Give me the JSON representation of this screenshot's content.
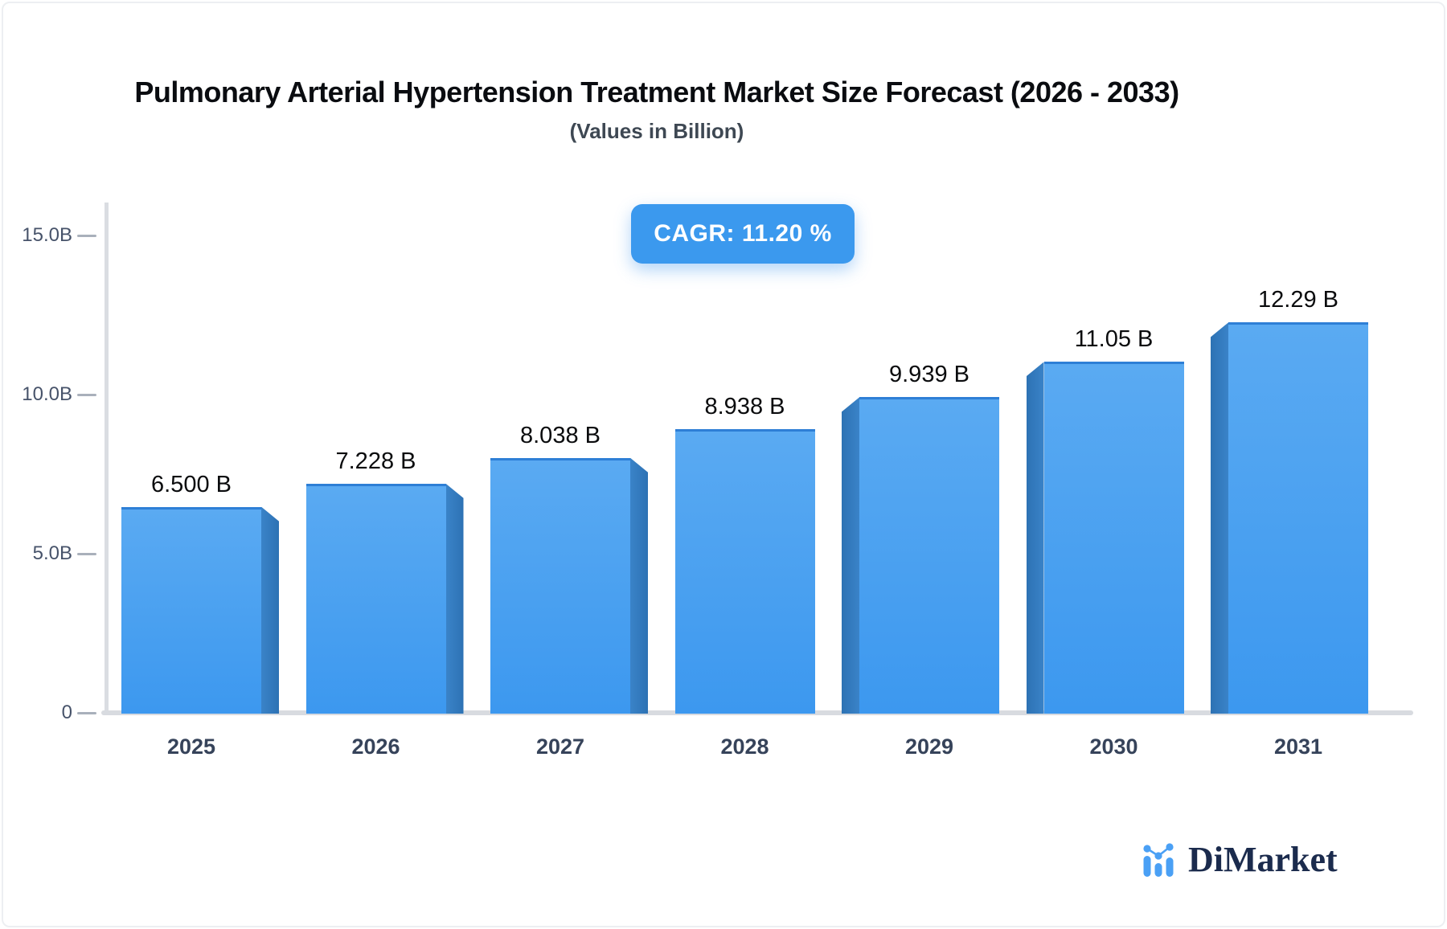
{
  "header": {
    "title": "Pulmonary Arterial Hypertension Treatment Market Size Forecast (2026 - 2033)",
    "subtitle": "(Values in Billion)"
  },
  "badge": {
    "label": "CAGR: 11.20 %"
  },
  "chart_data": {
    "type": "bar",
    "title": "Pulmonary Arterial Hypertension Treatment Market Size Forecast (2026 - 2033)",
    "subtitle": "(Values in Billion)",
    "categories": [
      "2025",
      "2026",
      "2027",
      "2028",
      "2029",
      "2030",
      "2031"
    ],
    "values": [
      6.5,
      7.228,
      8.038,
      8.938,
      9.939,
      11.05,
      12.29
    ],
    "value_labels": [
      "6.500 B",
      "7.228 B",
      "8.038 B",
      "8.938 B",
      "9.939 B",
      "11.05 B",
      "12.29 B"
    ],
    "cagr_label": "CAGR: 11.20 %",
    "xlabel": "",
    "ylabel": "",
    "ylim": [
      0,
      15
    ],
    "yticks": [
      {
        "value": 15,
        "label": "15.0B"
      },
      {
        "value": 10,
        "label": "10.0B"
      },
      {
        "value": 5,
        "label": "5.0B"
      },
      {
        "value": 0,
        "label": "0"
      }
    ],
    "grid": false,
    "legend": "none",
    "bar_style": "3d-extruded, perspective toward center"
  },
  "colors": {
    "accent_blue": "#3b99ee",
    "bar_face_top": "#5aaaf2",
    "bar_face_bottom": "#3c98ef",
    "bar_top_edge": "#2e7fd6",
    "bar_side": "#2e74b6",
    "axis_line": "#dadde2",
    "tick_text": "#47536a",
    "x_label_text": "#36435a",
    "value_label_text": "#0b0c0e",
    "logo_navy": "#1b2b4d",
    "logo_blue": "#4aa0f5"
  },
  "logo": {
    "text": "DiMarket",
    "icon": "bar-chart-logo-icon"
  }
}
